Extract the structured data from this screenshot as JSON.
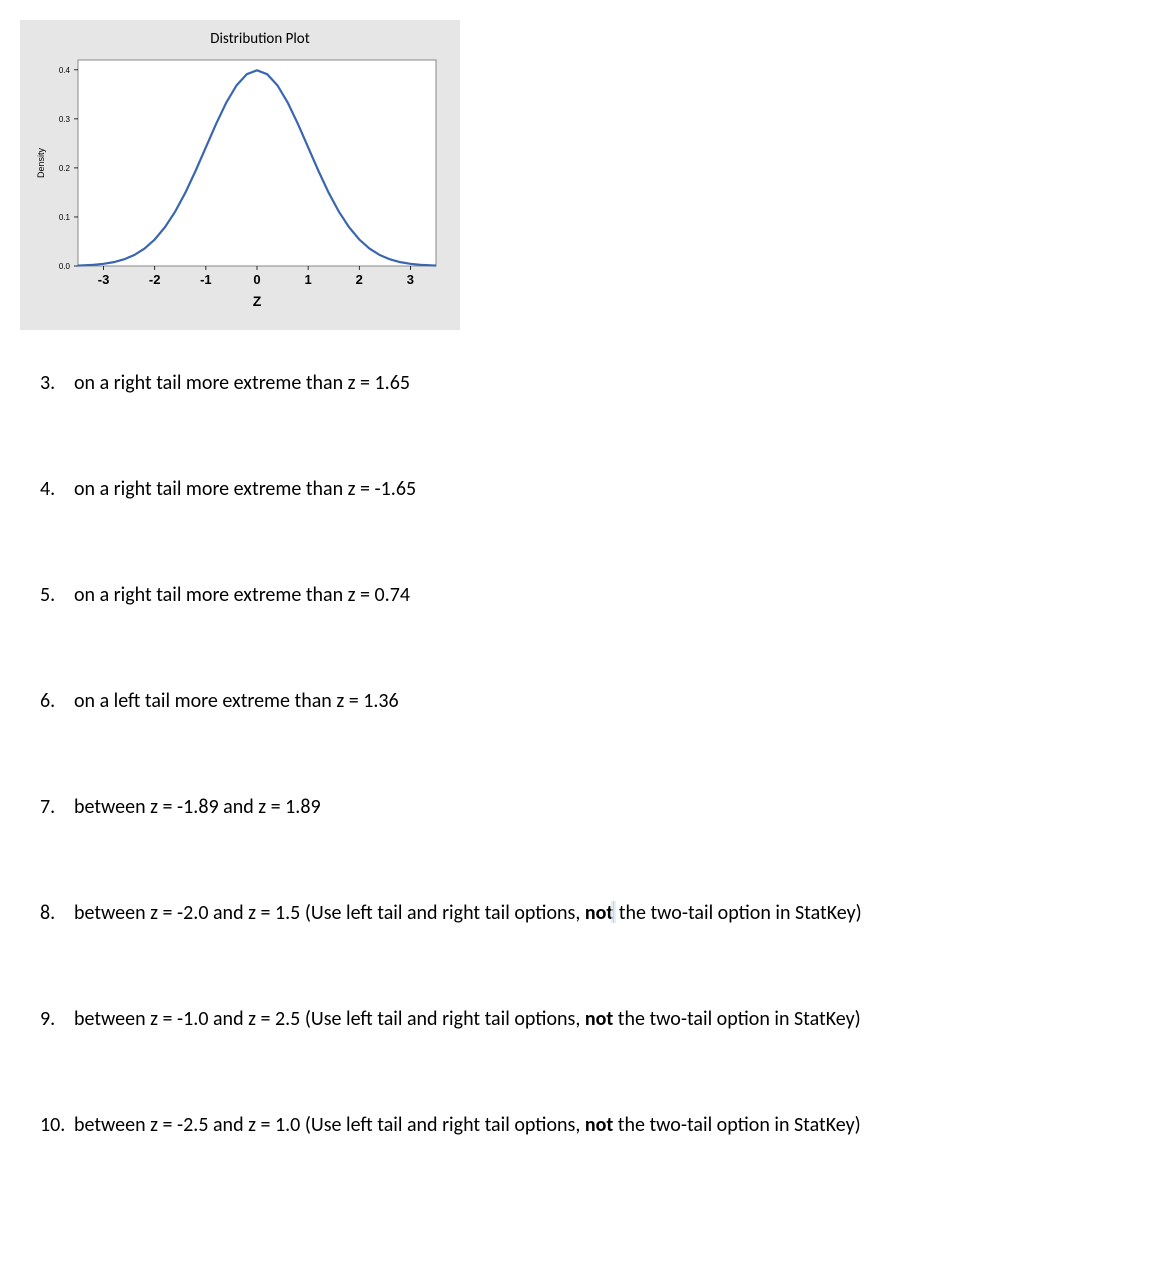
{
  "chart": {
    "title": "Distribution Plot",
    "ylabel": "Density",
    "xlabel": "Z",
    "x_ticks": [
      "-3",
      "-2",
      "-1",
      "0",
      "1",
      "2",
      "3"
    ],
    "y_ticks": [
      "0.0",
      "0.1",
      "0.2",
      "0.3",
      "0.4"
    ],
    "xlim": [
      -3.5,
      3.5
    ],
    "ylim": [
      0.0,
      0.42
    ],
    "line_color": "#3a66b0",
    "line_width": 2.2,
    "plot_background": "#ffffff",
    "container_background": "#e6e6e6",
    "border_color": "#888888",
    "tick_font_size": 8,
    "label_font_size": 9,
    "curve_points": [
      [
        -3.5,
        0.0009
      ],
      [
        -3.2,
        0.0024
      ],
      [
        -3.0,
        0.0044
      ],
      [
        -2.8,
        0.0079
      ],
      [
        -2.6,
        0.0136
      ],
      [
        -2.4,
        0.0224
      ],
      [
        -2.2,
        0.0355
      ],
      [
        -2.0,
        0.054
      ],
      [
        -1.8,
        0.079
      ],
      [
        -1.6,
        0.1109
      ],
      [
        -1.4,
        0.1497
      ],
      [
        -1.2,
        0.1942
      ],
      [
        -1.0,
        0.242
      ],
      [
        -0.8,
        0.2897
      ],
      [
        -0.6,
        0.3332
      ],
      [
        -0.4,
        0.3683
      ],
      [
        -0.2,
        0.391
      ],
      [
        0.0,
        0.3989
      ],
      [
        0.2,
        0.391
      ],
      [
        0.4,
        0.3683
      ],
      [
        0.6,
        0.3332
      ],
      [
        0.8,
        0.2897
      ],
      [
        1.0,
        0.242
      ],
      [
        1.2,
        0.1942
      ],
      [
        1.4,
        0.1497
      ],
      [
        1.6,
        0.1109
      ],
      [
        1.8,
        0.079
      ],
      [
        2.0,
        0.054
      ],
      [
        2.2,
        0.0355
      ],
      [
        2.4,
        0.0224
      ],
      [
        2.6,
        0.0136
      ],
      [
        2.8,
        0.0079
      ],
      [
        3.0,
        0.0044
      ],
      [
        3.2,
        0.0024
      ],
      [
        3.5,
        0.0009
      ]
    ]
  },
  "questions": [
    {
      "num": "3.",
      "text": "on a right tail more extreme than z = 1.65"
    },
    {
      "num": "4.",
      "text": "on a right tail more extreme than z = -1.65"
    },
    {
      "num": "5.",
      "text": "on a right tail more extreme than z = 0.74"
    },
    {
      "num": "6.",
      "text": "on a left tail more extreme than  z = 1.36"
    },
    {
      "num": "7.",
      "text": "between z = -1.89 and z = 1.89"
    },
    {
      "num": "8.",
      "prefix": "between z = -2.0 and z = 1.5 (Use left tail and right tail options, ",
      "bold": "not",
      "cursor_after_bold": true,
      "suffix": " the two-tail option in StatKey)"
    },
    {
      "num": "9.",
      "prefix": "between z = -1.0 and z = 2.5 (Use left tail and right tail options, ",
      "bold": "not",
      "suffix": " the two-tail option in StatKey)"
    },
    {
      "num": "10.",
      "prefix": "between z = -2.5 and z = 1.0 (Use left tail and right tail options, ",
      "bold": "not",
      "suffix": " the two-tail option in StatKey)"
    }
  ]
}
